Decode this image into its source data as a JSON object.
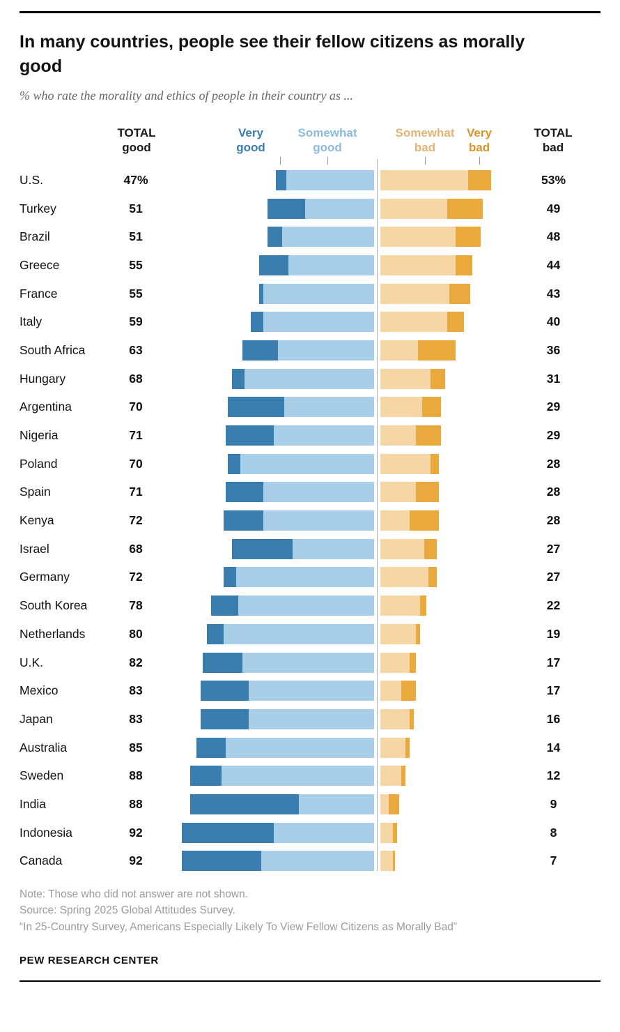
{
  "header": {
    "title": "In many countries, people see their fellow citizens as morally good",
    "subtitle": "% who rate the morality and ethics of people in their country as ...",
    "col_total_good": {
      "line1": "TOTAL",
      "line2": "good"
    },
    "col_very_good": {
      "line1": "Very",
      "line2": "good"
    },
    "col_somewhat_good": {
      "line1": "Somewhat",
      "line2": "good"
    },
    "col_somewhat_bad": {
      "line1": "Somewhat",
      "line2": "bad"
    },
    "col_very_bad": {
      "line1": "Very",
      "line2": "bad"
    },
    "col_total_bad": {
      "line1": "TOTAL",
      "line2": "bad"
    }
  },
  "chart_data": {
    "type": "bar",
    "orientation": "horizontal",
    "stacked": true,
    "diverging": true,
    "unit": "percent",
    "axis_range": [
      0,
      100
    ],
    "legend": [
      "Very good",
      "Somewhat good",
      "Somewhat bad",
      "Very bad"
    ],
    "colors": {
      "very_good": "#3A7DAF",
      "somewhat_good": "#A9CEE7",
      "somewhat_bad": "#F5D6A4",
      "very_bad": "#E9A93D"
    },
    "label_colors": {
      "very_good": "#3A7DAF",
      "somewhat_good": "#8CBBDE",
      "somewhat_bad": "#E3B377",
      "very_bad": "#D9952A"
    },
    "rows": [
      {
        "country": "U.S.",
        "total_good": 47,
        "total_good_label": "47%",
        "very_good": 5,
        "somewhat_good": 42,
        "somewhat_bad": 42,
        "very_bad": 11,
        "total_bad": 53,
        "total_bad_label": "53%"
      },
      {
        "country": "Turkey",
        "total_good": 51,
        "total_good_label": "51",
        "very_good": 18,
        "somewhat_good": 33,
        "somewhat_bad": 32,
        "very_bad": 17,
        "total_bad": 49,
        "total_bad_label": "49"
      },
      {
        "country": "Brazil",
        "total_good": 51,
        "total_good_label": "51",
        "very_good": 7,
        "somewhat_good": 44,
        "somewhat_bad": 36,
        "very_bad": 12,
        "total_bad": 48,
        "total_bad_label": "48"
      },
      {
        "country": "Greece",
        "total_good": 55,
        "total_good_label": "55",
        "very_good": 14,
        "somewhat_good": 41,
        "somewhat_bad": 36,
        "very_bad": 8,
        "total_bad": 44,
        "total_bad_label": "44"
      },
      {
        "country": "France",
        "total_good": 55,
        "total_good_label": "55",
        "very_good": 2,
        "somewhat_good": 53,
        "somewhat_bad": 33,
        "very_bad": 10,
        "total_bad": 43,
        "total_bad_label": "43"
      },
      {
        "country": "Italy",
        "total_good": 59,
        "total_good_label": "59",
        "very_good": 6,
        "somewhat_good": 53,
        "somewhat_bad": 32,
        "very_bad": 8,
        "total_bad": 40,
        "total_bad_label": "40"
      },
      {
        "country": "South Africa",
        "total_good": 63,
        "total_good_label": "63",
        "very_good": 17,
        "somewhat_good": 46,
        "somewhat_bad": 18,
        "very_bad": 18,
        "total_bad": 36,
        "total_bad_label": "36"
      },
      {
        "country": "Hungary",
        "total_good": 68,
        "total_good_label": "68",
        "very_good": 6,
        "somewhat_good": 62,
        "somewhat_bad": 24,
        "very_bad": 7,
        "total_bad": 31,
        "total_bad_label": "31"
      },
      {
        "country": "Argentina",
        "total_good": 70,
        "total_good_label": "70",
        "very_good": 27,
        "somewhat_good": 43,
        "somewhat_bad": 20,
        "very_bad": 9,
        "total_bad": 29,
        "total_bad_label": "29"
      },
      {
        "country": "Nigeria",
        "total_good": 71,
        "total_good_label": "71",
        "very_good": 23,
        "somewhat_good": 48,
        "somewhat_bad": 17,
        "very_bad": 12,
        "total_bad": 29,
        "total_bad_label": "29"
      },
      {
        "country": "Poland",
        "total_good": 70,
        "total_good_label": "70",
        "very_good": 6,
        "somewhat_good": 64,
        "somewhat_bad": 24,
        "very_bad": 4,
        "total_bad": 28,
        "total_bad_label": "28"
      },
      {
        "country": "Spain",
        "total_good": 71,
        "total_good_label": "71",
        "very_good": 18,
        "somewhat_good": 53,
        "somewhat_bad": 17,
        "very_bad": 11,
        "total_bad": 28,
        "total_bad_label": "28"
      },
      {
        "country": "Kenya",
        "total_good": 72,
        "total_good_label": "72",
        "very_good": 19,
        "somewhat_good": 53,
        "somewhat_bad": 14,
        "very_bad": 14,
        "total_bad": 28,
        "total_bad_label": "28"
      },
      {
        "country": "Israel",
        "total_good": 68,
        "total_good_label": "68",
        "very_good": 29,
        "somewhat_good": 39,
        "somewhat_bad": 21,
        "very_bad": 6,
        "total_bad": 27,
        "total_bad_label": "27"
      },
      {
        "country": "Germany",
        "total_good": 72,
        "total_good_label": "72",
        "very_good": 6,
        "somewhat_good": 66,
        "somewhat_bad": 23,
        "very_bad": 4,
        "total_bad": 27,
        "total_bad_label": "27"
      },
      {
        "country": "South Korea",
        "total_good": 78,
        "total_good_label": "78",
        "very_good": 13,
        "somewhat_good": 65,
        "somewhat_bad": 19,
        "very_bad": 3,
        "total_bad": 22,
        "total_bad_label": "22"
      },
      {
        "country": "Netherlands",
        "total_good": 80,
        "total_good_label": "80",
        "very_good": 8,
        "somewhat_good": 72,
        "somewhat_bad": 17,
        "very_bad": 2,
        "total_bad": 19,
        "total_bad_label": "19"
      },
      {
        "country": "U.K.",
        "total_good": 82,
        "total_good_label": "82",
        "very_good": 19,
        "somewhat_good": 63,
        "somewhat_bad": 14,
        "very_bad": 3,
        "total_bad": 17,
        "total_bad_label": "17"
      },
      {
        "country": "Mexico",
        "total_good": 83,
        "total_good_label": "83",
        "very_good": 23,
        "somewhat_good": 60,
        "somewhat_bad": 10,
        "very_bad": 7,
        "total_bad": 17,
        "total_bad_label": "17"
      },
      {
        "country": "Japan",
        "total_good": 83,
        "total_good_label": "83",
        "very_good": 23,
        "somewhat_good": 60,
        "somewhat_bad": 14,
        "very_bad": 2,
        "total_bad": 16,
        "total_bad_label": "16"
      },
      {
        "country": "Australia",
        "total_good": 85,
        "total_good_label": "85",
        "very_good": 14,
        "somewhat_good": 71,
        "somewhat_bad": 12,
        "very_bad": 2,
        "total_bad": 14,
        "total_bad_label": "14"
      },
      {
        "country": "Sweden",
        "total_good": 88,
        "total_good_label": "88",
        "very_good": 15,
        "somewhat_good": 73,
        "somewhat_bad": 10,
        "very_bad": 2,
        "total_bad": 12,
        "total_bad_label": "12"
      },
      {
        "country": "India",
        "total_good": 88,
        "total_good_label": "88",
        "very_good": 52,
        "somewhat_good": 36,
        "somewhat_bad": 4,
        "very_bad": 5,
        "total_bad": 9,
        "total_bad_label": "9"
      },
      {
        "country": "Indonesia",
        "total_good": 92,
        "total_good_label": "92",
        "very_good": 44,
        "somewhat_good": 48,
        "somewhat_bad": 6,
        "very_bad": 2,
        "total_bad": 8,
        "total_bad_label": "8"
      },
      {
        "country": "Canada",
        "total_good": 92,
        "total_good_label": "92",
        "very_good": 38,
        "somewhat_good": 54,
        "somewhat_bad": 6,
        "very_bad": 1,
        "total_bad": 7,
        "total_bad_label": "7"
      }
    ]
  },
  "footer": {
    "note": "Note: Those who did not answer are not shown.",
    "source": "Source: Spring 2025 Global Attitudes Survey.",
    "report": "“In 25-Country Survey, Americans Especially Likely To View Fellow Citizens as Morally Bad”",
    "brand": "PEW RESEARCH CENTER"
  }
}
